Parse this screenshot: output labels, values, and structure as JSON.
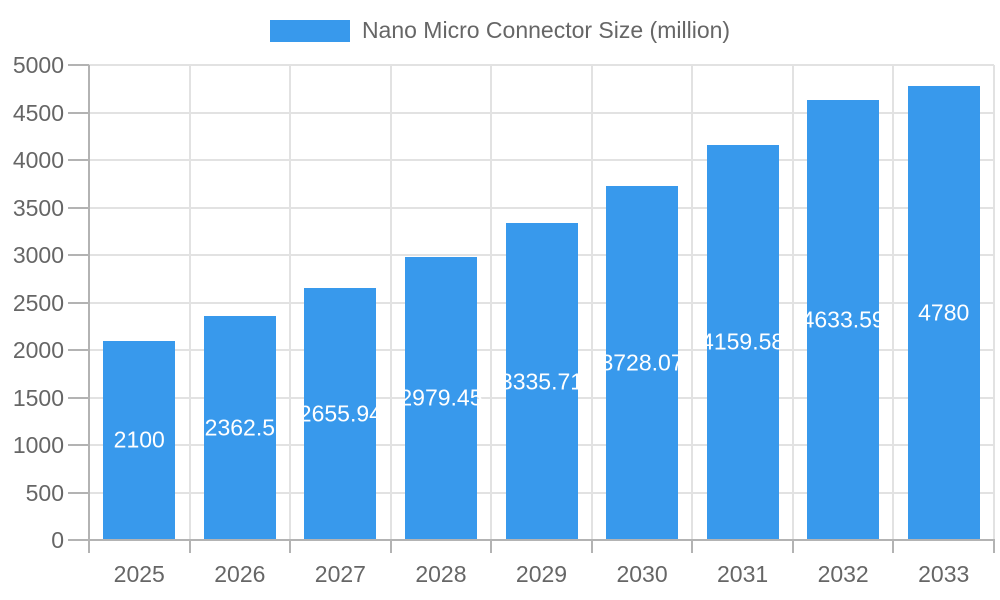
{
  "chart_data": {
    "type": "bar",
    "legend": "Nano Micro Connector Size (million)",
    "categories": [
      "2025",
      "2026",
      "2027",
      "2028",
      "2029",
      "2030",
      "2031",
      "2032",
      "2033"
    ],
    "values": [
      2100,
      2362.5,
      2655.94,
      2979.45,
      3335.71,
      3728.07,
      4159.58,
      4633.59,
      4780
    ],
    "value_labels": [
      "2100",
      "2362.5",
      "2655.94",
      "2979.45",
      "3335.71",
      "3728.07",
      "4159.58",
      "4633.59",
      "4780"
    ],
    "xlabel": "",
    "ylabel": "",
    "ylim": [
      0,
      5000
    ],
    "ytick_step": 500,
    "ytick_labels": [
      "0",
      "500",
      "1000",
      "1500",
      "2000",
      "2500",
      "3000",
      "3500",
      "4000",
      "4500",
      "5000"
    ],
    "grid": true,
    "legend_position": "top"
  },
  "colors": {
    "bar": "#3899EC",
    "grid_line": "#E2E2E2",
    "axis_line": "#B3B3B3",
    "axis_label": "#666666",
    "bar_label": "#FFFFFF"
  }
}
